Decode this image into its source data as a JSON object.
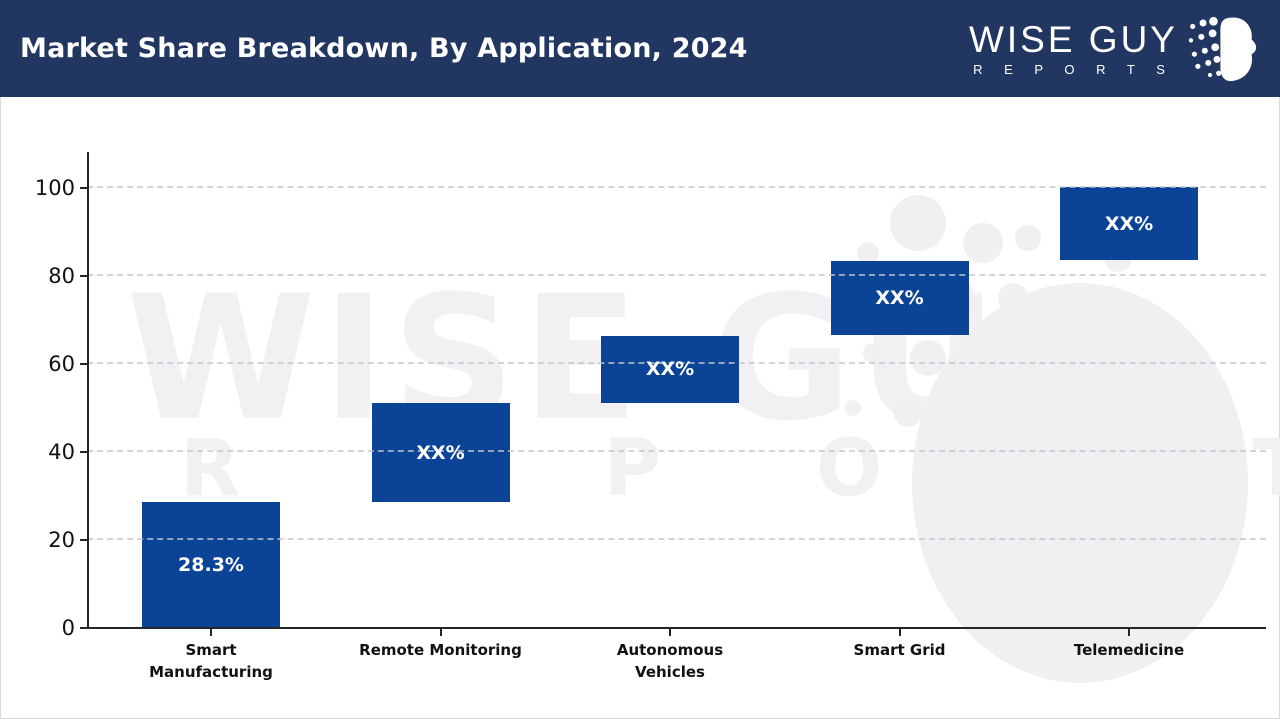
{
  "header": {
    "title": "Market Share Breakdown, By Application, 2024",
    "bg_color": "#213660",
    "text_color": "#ffffff",
    "logo": {
      "line1": "WISE GUY",
      "line2": "R E P O R T S"
    }
  },
  "watermark": {
    "line1": "WISE GUY",
    "line2": "R E P O R T S",
    "color": "#f1f1f3"
  },
  "chart_data": {
    "type": "bar",
    "subtype": "waterfall",
    "title": "Market Share Breakdown, By Application, 2024",
    "categories": [
      "Smart Manufacturing",
      "Remote Monitoring",
      "Autonomous Vehicles",
      "Smart Grid",
      "Telemedicine"
    ],
    "category_lines": [
      [
        "Smart",
        "Manufacturing"
      ],
      [
        "Remote Monitoring"
      ],
      [
        "Autonomous",
        "Vehicles"
      ],
      [
        "Smart Grid"
      ],
      [
        "Telemedicine"
      ]
    ],
    "segments": [
      {
        "category": "Smart Manufacturing",
        "start": 0,
        "end": 28.3,
        "label": "28.3%"
      },
      {
        "category": "Remote Monitoring",
        "start": 28.3,
        "end": 51.0,
        "label": "XX%"
      },
      {
        "category": "Autonomous Vehicles",
        "start": 51.0,
        "end": 66.1,
        "label": "XX%"
      },
      {
        "category": "Smart Grid",
        "start": 66.4,
        "end": 83.2,
        "label": "XX%"
      },
      {
        "category": "Telemedicine",
        "start": 83.4,
        "end": 100.0,
        "label": "XX%"
      }
    ],
    "xlabel": "",
    "ylabel": "",
    "yticks": [
      0,
      20,
      40,
      60,
      80,
      100
    ],
    "ylim": [
      0,
      108
    ],
    "grid": "horizontal dashed at yticks above 0, drawn over bars",
    "legend": "none",
    "bar_color": "#0b4397",
    "bar_label_color": "#ffffff",
    "axis_color": "#262626"
  }
}
